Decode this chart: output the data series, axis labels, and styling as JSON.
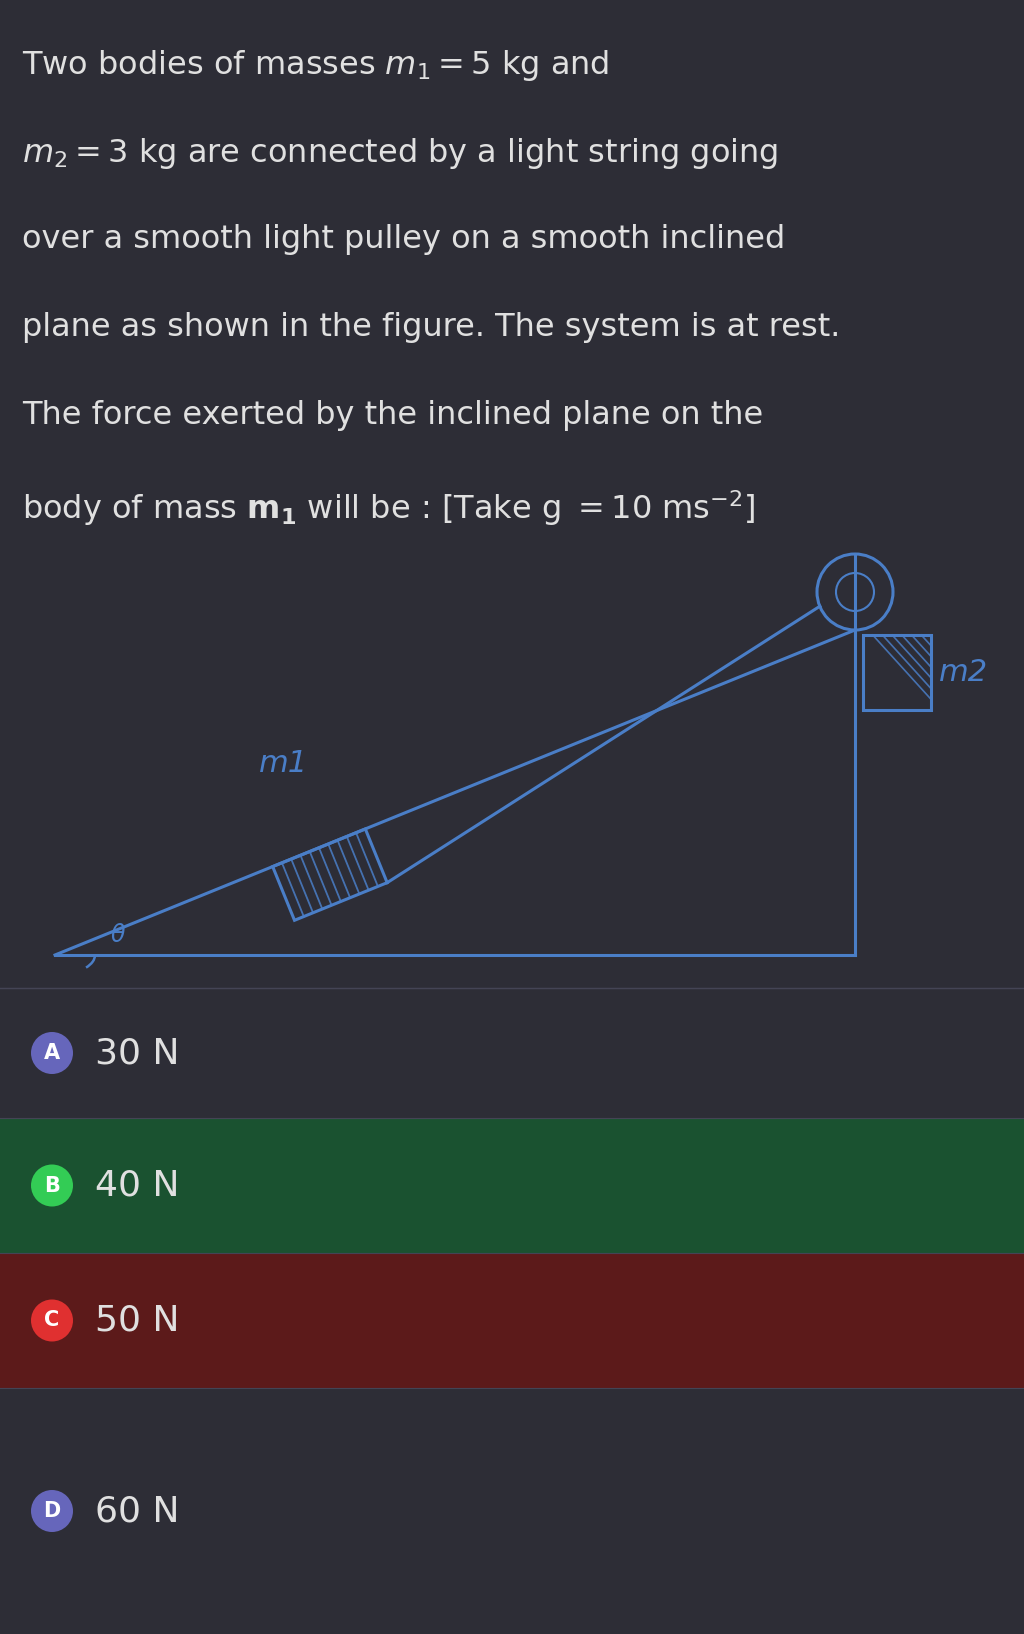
{
  "bg_color": "#2d2d36",
  "text_color": "#e0e0e0",
  "blue_color": "#4a7ec7",
  "line1": "Two bodies of masses $m_1 = 5$ kg and",
  "line2": "$m_2 = 3$ kg are connected by a light string going",
  "line3": "over a smooth light pulley on a smooth inclined",
  "line4": "plane as shown in the figure. The system is at rest.",
  "line5": "The force exerted by the inclined plane on the",
  "line6": "body of mass $\\mathbf{m_1}$ will be : [Take g $= 10$ ms$^{-2}$]",
  "options": [
    {
      "label": "A",
      "text": "30 N",
      "bg": null,
      "label_color": "#6666bb"
    },
    {
      "label": "B",
      "text": "40 N",
      "bg": "#1a5230",
      "label_color": "#33cc55"
    },
    {
      "label": "C",
      "text": "50 N",
      "bg": "#5c1a1a",
      "label_color": "#e03030"
    },
    {
      "label": "D",
      "text": "60 N",
      "bg": null,
      "label_color": "#6666bb"
    }
  ],
  "option_text_color": "#e0e0e0",
  "divider_color": "#444455",
  "text_fontsize": 23,
  "option_fontsize": 26
}
